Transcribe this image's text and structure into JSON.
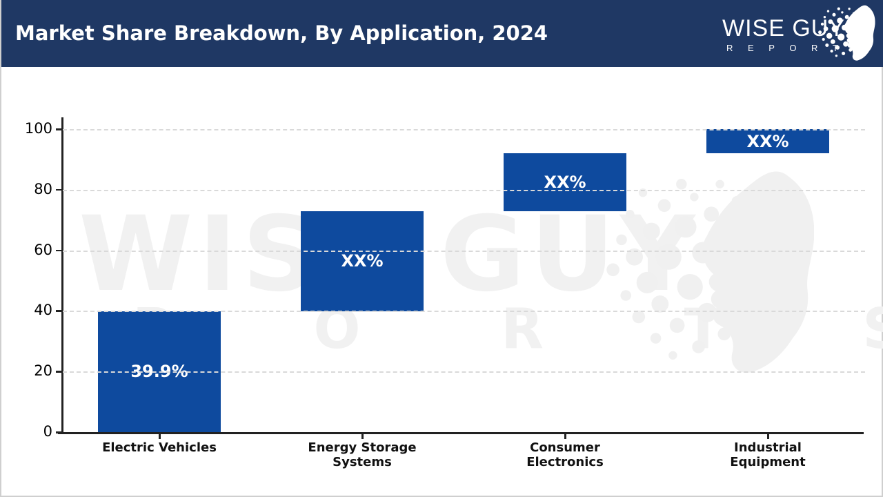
{
  "header": {
    "title": "Market Share Breakdown, By Application, 2024",
    "logo": {
      "name": "WISE GUY",
      "tagline": "R E P O R T S"
    }
  },
  "watermark": {
    "line1": "WISE GUY",
    "line2": "P O R T S"
  },
  "chart_data": {
    "type": "bar",
    "subtype": "waterfall",
    "title": "Market Share Breakdown, By Application, 2024",
    "categories": [
      "Electric Vehicles",
      "Energy Storage Systems",
      "Consumer Electronics",
      "Industrial Equipment"
    ],
    "segments": [
      {
        "category": "Electric Vehicles",
        "start": 0,
        "end": 39.9,
        "label": "39.9%"
      },
      {
        "category": "Energy Storage Systems",
        "start": 39.9,
        "end": 73,
        "label": "XX%"
      },
      {
        "category": "Consumer Electronics",
        "start": 73,
        "end": 92,
        "label": "XX%"
      },
      {
        "category": "Industrial Equipment",
        "start": 92,
        "end": 100,
        "label": "XX%"
      }
    ],
    "segment_sizes_pct_est": [
      39.9,
      33.1,
      19.0,
      8.0
    ],
    "yticks": [
      0,
      20,
      40,
      60,
      80,
      100
    ],
    "ylim": [
      0,
      105
    ],
    "xlabel": "",
    "ylabel": "",
    "legend": "none",
    "grid": {
      "axis": "y",
      "style": "dashed",
      "color": "#d9d9d9"
    },
    "bar_color": "#0e4a9e",
    "bar_label_color": "#ffffff",
    "header_color": "#1f3864",
    "watermark_text": "WISE GUY REPORTS"
  }
}
